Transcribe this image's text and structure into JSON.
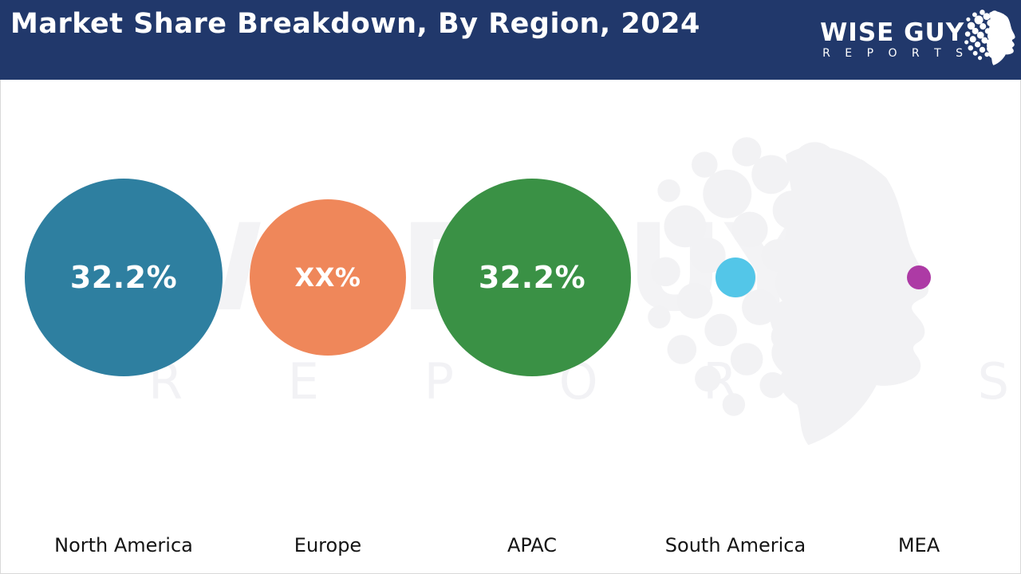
{
  "header": {
    "title": "Market Share Breakdown, By Region, 2024",
    "background_color": "#21386b",
    "logo": {
      "brand_line1": "WISE GUY",
      "brand_line2": "R E P O R T S"
    }
  },
  "watermark": {
    "line1": "WISE GUY",
    "line2": "R E P O R T S"
  },
  "chart_data": {
    "type": "bubble",
    "title": "Market Share Breakdown, By Region, 2024",
    "categories": [
      "North America",
      "Europe",
      "APAC",
      "South America",
      "MEA"
    ],
    "series": [
      {
        "name": "North America",
        "label": "32.2%",
        "value": 32.2,
        "color": "#2e7fa0",
        "radius": 124
      },
      {
        "name": "Europe",
        "label": "XX%",
        "value": null,
        "color": "#ef875a",
        "radius": 98
      },
      {
        "name": "APAC",
        "label": "32.2%",
        "value": 32.2,
        "color": "#3a9145",
        "radius": 124
      },
      {
        "name": "South America",
        "label": "",
        "value": null,
        "color": "#53c6e8",
        "radius": 25
      },
      {
        "name": "MEA",
        "label": "",
        "value": null,
        "color": "#ad3aa5",
        "radius": 15
      }
    ],
    "legend_position": "category-labels-below-bubbles",
    "grid": false,
    "background": "#ffffff",
    "value_label_color": "#ffffff"
  }
}
